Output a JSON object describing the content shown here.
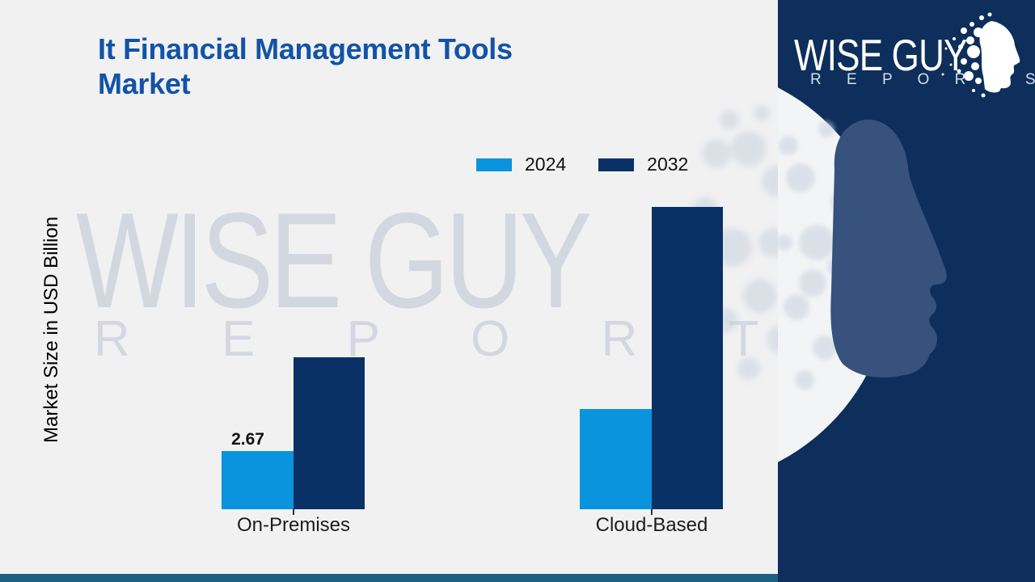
{
  "page": {
    "background_color": "#f1f1f2",
    "footer_strip_color": "#1e6080"
  },
  "header": {
    "title_line1": "It Financial Management Tools",
    "title_line2": "Market",
    "title_color": "#1253a6"
  },
  "watermark": {
    "line1": "WISE GUY",
    "line2": "R E P O R T S"
  },
  "brand_panel": {
    "background_color": "#0e2e5c",
    "logo_line1": "WISE GUY",
    "logo_line2": "R E P O R T S"
  },
  "chart_data": {
    "type": "bar",
    "title": "It Financial Management Tools Market",
    "xlabel": "",
    "ylabel": "Market Size in USD Billion",
    "categories": [
      "On-Premises",
      "Cloud-Based"
    ],
    "series": [
      {
        "name": "2024",
        "color": "#0a94dd",
        "values": [
          2.67,
          4.6
        ]
      },
      {
        "name": "2032",
        "color": "#0a3166",
        "values": [
          7.0,
          13.9
        ]
      }
    ],
    "data_labels": [
      {
        "category_index": 0,
        "series_index": 0,
        "text": "2.67"
      }
    ],
    "legend_position": "top-right",
    "grid": false,
    "axis_line": false,
    "ylim": [
      0,
      16
    ]
  }
}
